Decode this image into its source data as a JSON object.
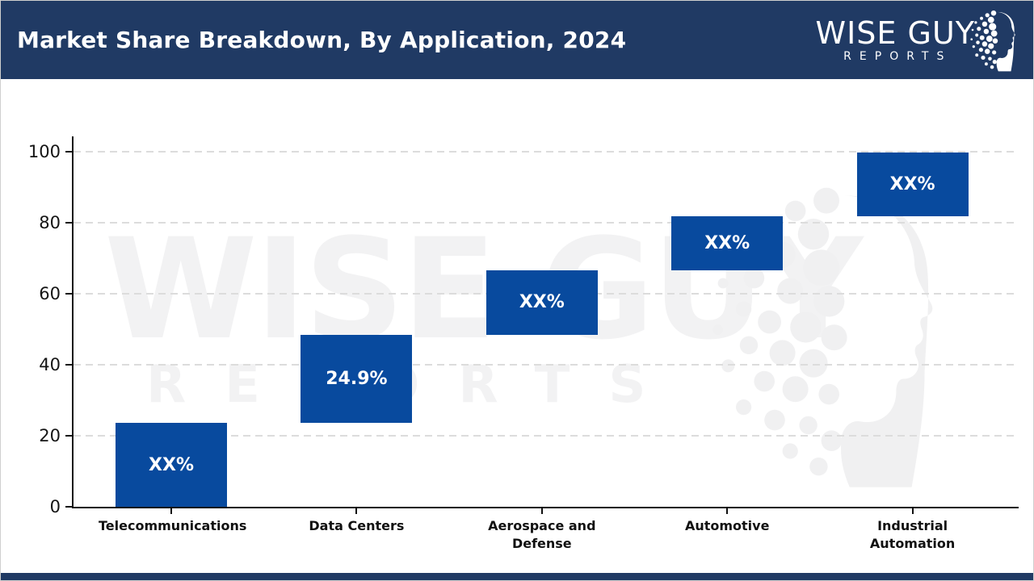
{
  "header": {
    "title": "Market Share Breakdown, By Application, 2024",
    "logo": {
      "line1": "WISE GUY",
      "line2": "REPORTS"
    }
  },
  "watermark": {
    "line1": "WISE GUY",
    "line2": "REPORTS"
  },
  "chart_data": {
    "type": "bar",
    "subtype": "waterfall",
    "title": "Market Share Breakdown, By Application, 2024",
    "categories": [
      "Telecommunications",
      "Data Centers",
      "Aerospace and Defense",
      "Automotive",
      "Industrial Automation"
    ],
    "series": [
      {
        "name": "Market Share (%)",
        "segments": [
          {
            "category": "Telecommunications",
            "label": "XX%",
            "start": 0,
            "end": 23.6
          },
          {
            "category": "Data Centers",
            "label": "24.9%",
            "start": 23.6,
            "end": 48.5
          },
          {
            "category": "Aerospace and Defense",
            "label": "XX%",
            "start": 48.5,
            "end": 66.6
          },
          {
            "category": "Automotive",
            "label": "XX%",
            "start": 66.6,
            "end": 81.8
          },
          {
            "category": "Industrial Automation",
            "label": "XX%",
            "start": 81.9,
            "end": 99.8
          }
        ]
      }
    ],
    "xlabel": "",
    "ylabel": "",
    "yticks": [
      0,
      20,
      40,
      60,
      80,
      100
    ],
    "ylim": [
      0,
      104
    ],
    "grid": "horizontal dashed",
    "legend": "none",
    "bar_color": "#084a9e",
    "bar_label_color": "#ffffff",
    "background_color": "#ffffff",
    "header_color": "#203a64",
    "watermark_color": "#f2f2f3"
  }
}
